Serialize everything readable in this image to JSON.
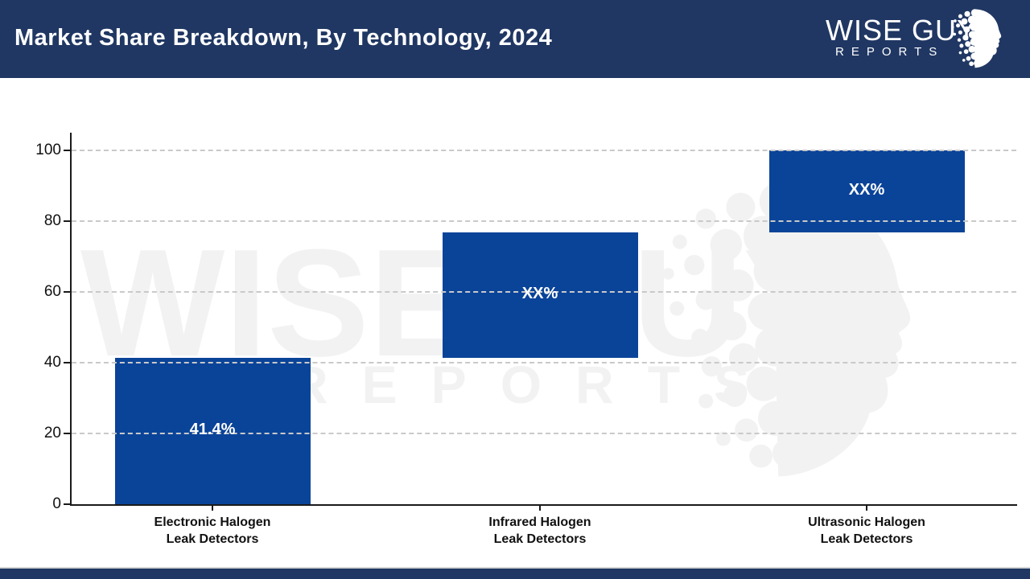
{
  "header": {
    "title": "Market Share Breakdown, By Technology, 2024",
    "background_color": "#203763",
    "title_color": "#ffffff",
    "logo": {
      "line1": "WISE GUY",
      "line2": "REPORTS"
    }
  },
  "watermark": {
    "line1": "WISE GUY",
    "line2": "REPORTS"
  },
  "footer": {
    "background_color": "#203763"
  },
  "chart_data": {
    "type": "bar",
    "subtype": "floating-segment (waterfall-style market share breakdown)",
    "title": "Market Share Breakdown, By Technology, 2024",
    "categories": [
      "Electronic Halogen Leak Detectors",
      "Infrared Halogen Leak Detectors",
      "Ultrasonic Halogen Leak Detectors"
    ],
    "category_lines": [
      [
        "Electronic Halogen",
        "Leak Detectors"
      ],
      [
        "Infrared Halogen",
        "Leak Detectors"
      ],
      [
        "Ultrasonic Halogen",
        "Leak Detectors"
      ]
    ],
    "segments": [
      {
        "category": "Electronic Halogen Leak Detectors",
        "start": 0,
        "end": 41.4,
        "label": "41.4%"
      },
      {
        "category": "Infrared Halogen Leak Detectors",
        "start": 41.4,
        "end": 76.8,
        "label": "XX%"
      },
      {
        "category": "Ultrasonic Halogen Leak Detectors",
        "start": 76.8,
        "end": 100,
        "label": "XX%"
      }
    ],
    "yticks": [
      0,
      20,
      40,
      60,
      80,
      100
    ],
    "ylim": [
      0,
      105
    ],
    "xlabel": "",
    "ylabel": "",
    "grid": "horizontal dashed, drawn above bars",
    "legend": "none",
    "bar_color": "#0a4499",
    "bar_label_color": "#ffffff",
    "axis_color": "#1a1a1a",
    "gridline_color": "#c9c9c9"
  }
}
